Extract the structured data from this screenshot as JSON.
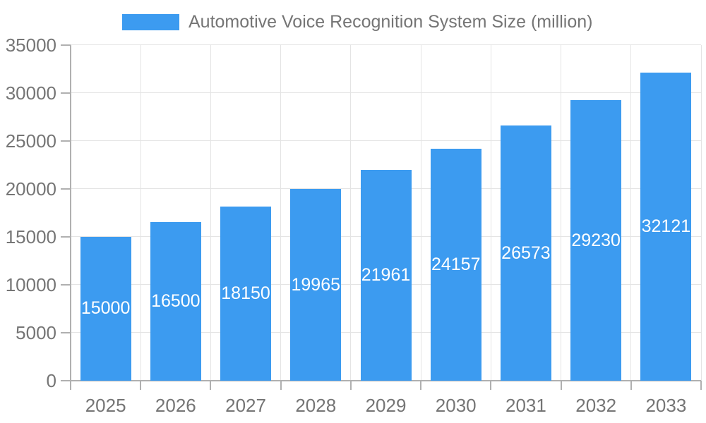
{
  "legend": {
    "label": "Automotive Voice Recognition System Size (million)"
  },
  "colors": {
    "bar": "#3c9bf0",
    "grid": "#e4e4e4",
    "axis": "#b0b0b0",
    "text": "#757575",
    "value_label": "#ffffff",
    "background": "#ffffff"
  },
  "chart_data": {
    "type": "bar",
    "title": "Automotive Voice Recognition System Size (million)",
    "categories": [
      "2025",
      "2026",
      "2027",
      "2028",
      "2029",
      "2030",
      "2031",
      "2032",
      "2033"
    ],
    "values": [
      15000,
      16500,
      18150,
      19965,
      21961,
      24157,
      26573,
      29230,
      32121
    ],
    "value_labels": [
      "15000",
      "16500",
      "18150",
      "19965",
      "21961",
      "24157",
      "26573",
      "29230",
      "32121"
    ],
    "ytick_labels": [
      "0",
      "5000",
      "10000",
      "15000",
      "20000",
      "25000",
      "30000",
      "35000"
    ],
    "xlabel": "",
    "ylabel": "",
    "ylim": [
      0,
      35000
    ],
    "ytick_step": 5000,
    "grid": true,
    "legend_position": "top",
    "value_label_position": "inside-center"
  }
}
